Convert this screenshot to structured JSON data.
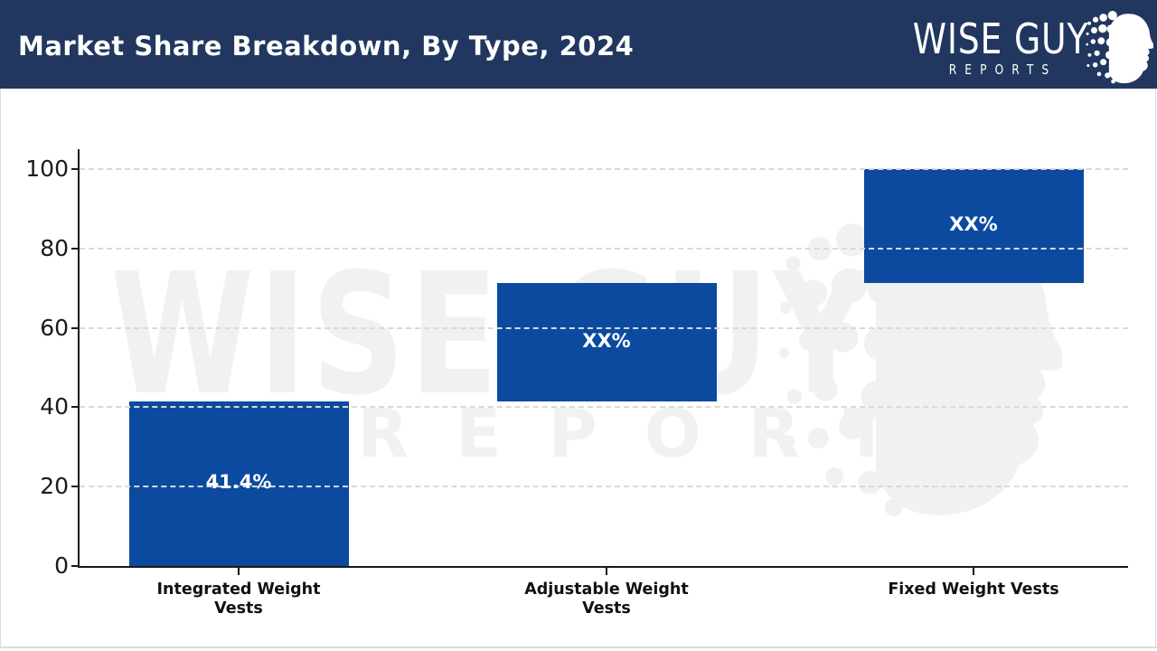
{
  "header": {
    "title": "Market Share Breakdown, By Type, 2024",
    "logo_text": "WISE GUY",
    "logo_subtext": "REPORTS",
    "background_color": "#21375f",
    "text_color": "#ffffff"
  },
  "watermark": {
    "text": "WISE GUY",
    "subtext": "REPORTS"
  },
  "chart_data": {
    "type": "bar",
    "subtype": "waterfall",
    "title": "Market Share Breakdown, By Type, 2024",
    "categories": [
      "Integrated Weight Vests",
      "Adjustable Weight Vests",
      "Fixed Weight Vests"
    ],
    "series": [
      {
        "name": "Market Share 2024",
        "segments": [
          {
            "category": "Integrated Weight Vests",
            "start": 0,
            "end": 41.4,
            "label": "41.4%"
          },
          {
            "category": "Adjustable Weight Vests",
            "start": 41.4,
            "end": 71.2,
            "label": "XX%"
          },
          {
            "category": "Fixed Weight Vests",
            "start": 71.2,
            "end": 100,
            "label": "XX%"
          }
        ]
      }
    ],
    "ylim": [
      0,
      100
    ],
    "yticks": [
      0,
      20,
      40,
      60,
      80,
      100
    ],
    "xlabel": "",
    "ylabel": "",
    "grid": "horizontal-dashed",
    "grid_over_bars": true,
    "legend": "none",
    "bar_color": "#0b4a9f",
    "bar_label_color": "#ffffff",
    "axis_color": "#1a1a1a",
    "grid_color": "#d9d9d9"
  }
}
